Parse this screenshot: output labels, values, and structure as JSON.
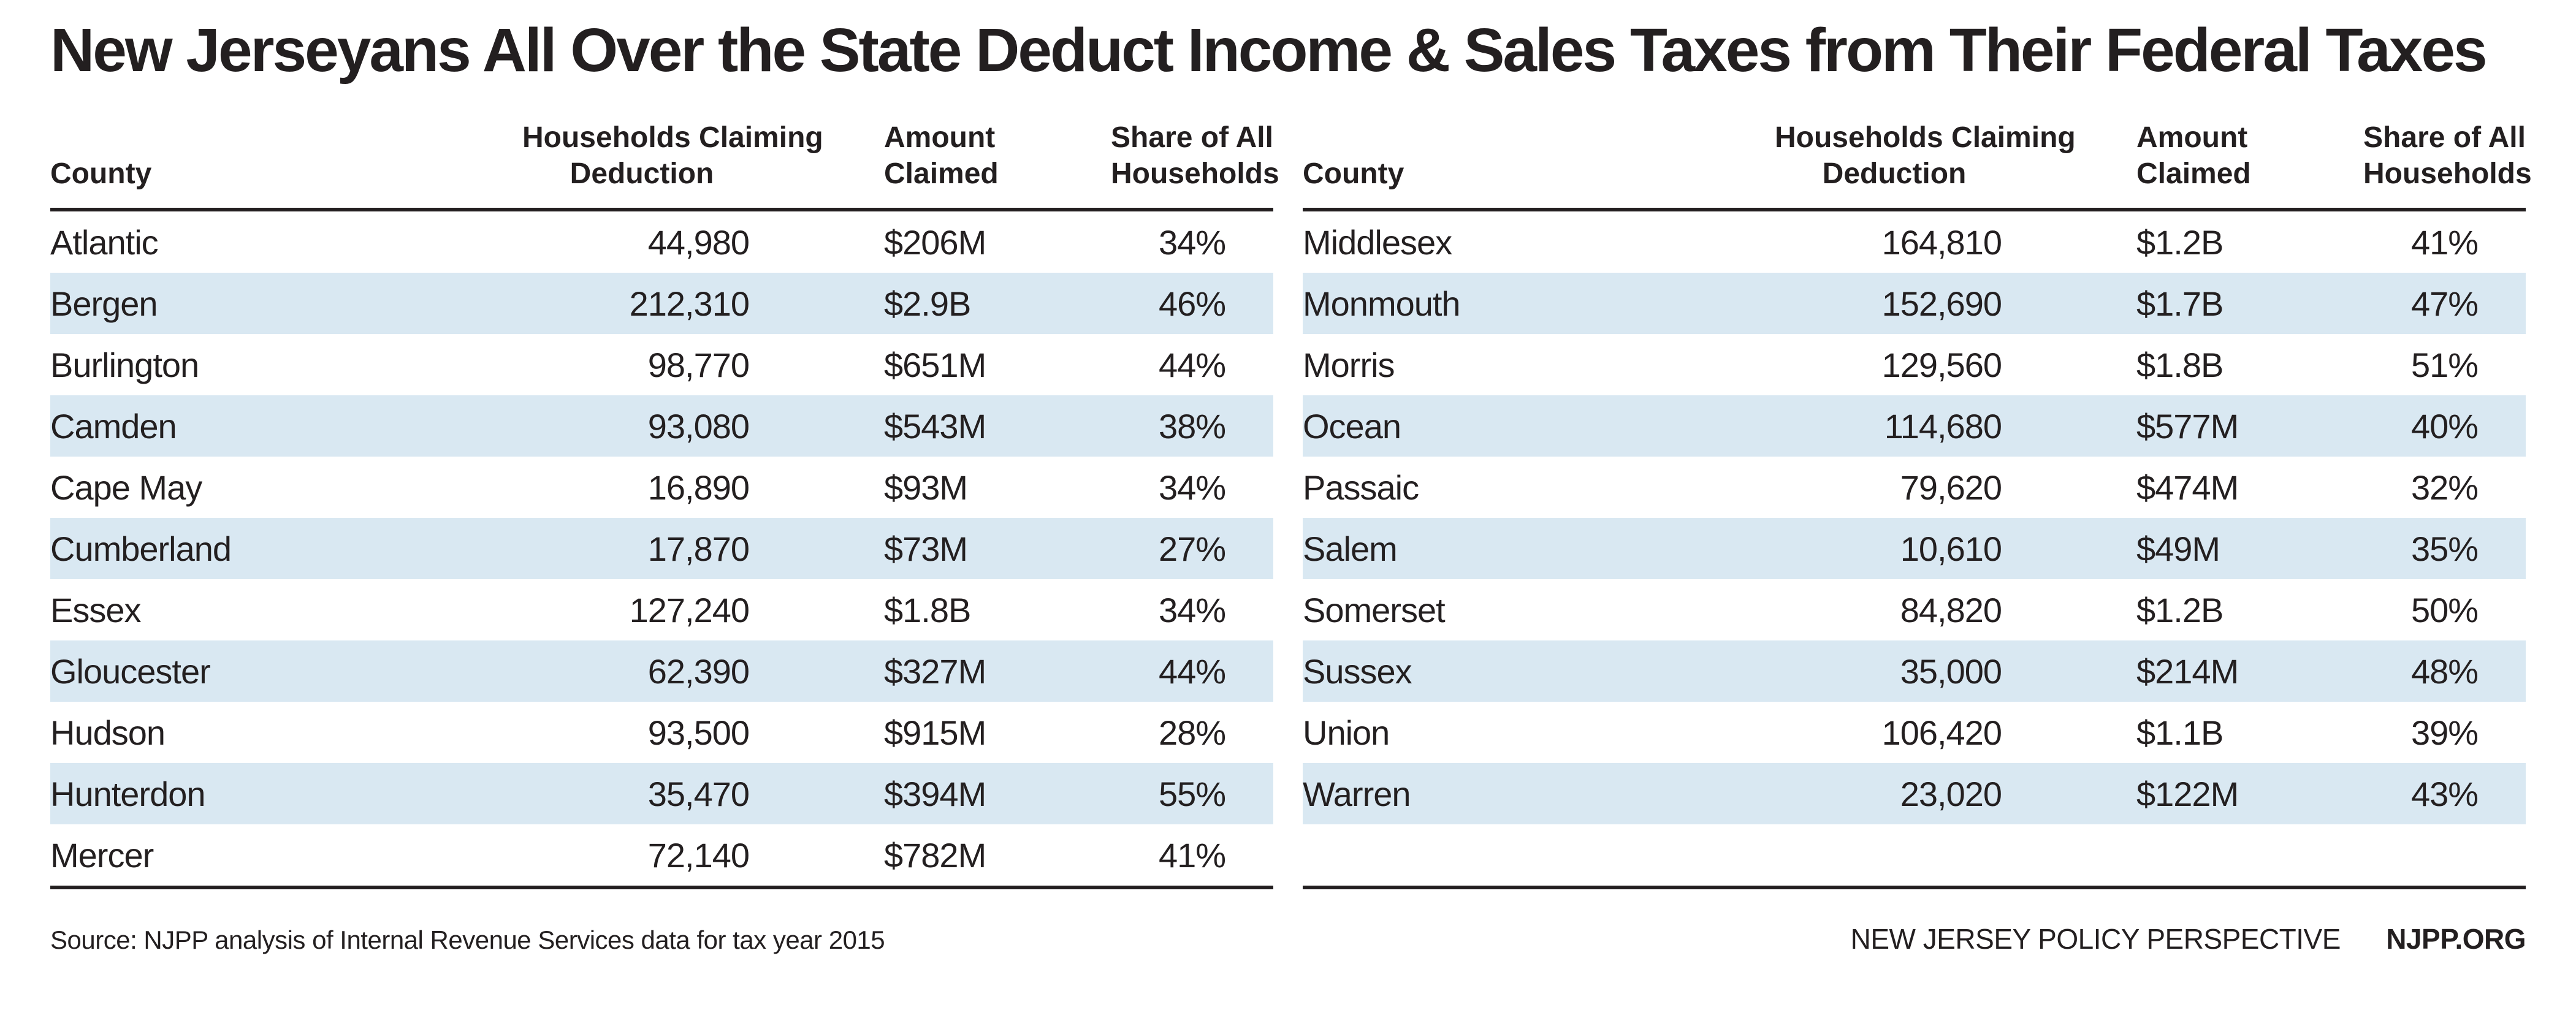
{
  "title": "New Jerseyans All Over the State Deduct Income & Sales Taxes from Their Federal Taxes",
  "columns": {
    "county": "County",
    "households": "Households Claiming\nDeduction",
    "amount": "Amount\nClaimed",
    "share": "Share of All\nHouseholds"
  },
  "tables": [
    {
      "rows": [
        {
          "county": "Atlantic",
          "households": "44,980",
          "amount": "$206M",
          "share": "34%"
        },
        {
          "county": "Bergen",
          "households": "212,310",
          "amount": "$2.9B",
          "share": "46%"
        },
        {
          "county": "Burlington",
          "households": "98,770",
          "amount": "$651M",
          "share": "44%"
        },
        {
          "county": "Camden",
          "households": "93,080",
          "amount": "$543M",
          "share": "38%"
        },
        {
          "county": "Cape May",
          "households": "16,890",
          "amount": "$93M",
          "share": "34%"
        },
        {
          "county": "Cumberland",
          "households": "17,870",
          "amount": "$73M",
          "share": "27%"
        },
        {
          "county": "Essex",
          "households": "127,240",
          "amount": "$1.8B",
          "share": "34%"
        },
        {
          "county": "Gloucester",
          "households": "62,390",
          "amount": "$327M",
          "share": "44%"
        },
        {
          "county": "Hudson",
          "households": "93,500",
          "amount": "$915M",
          "share": "28%"
        },
        {
          "county": "Hunterdon",
          "households": "35,470",
          "amount": "$394M",
          "share": "55%"
        },
        {
          "county": "Mercer",
          "households": "72,140",
          "amount": "$782M",
          "share": "41%"
        }
      ]
    },
    {
      "rows": [
        {
          "county": "Middlesex",
          "households": "164,810",
          "amount": "$1.2B",
          "share": "41%"
        },
        {
          "county": "Monmouth",
          "households": "152,690",
          "amount": "$1.7B",
          "share": "47%"
        },
        {
          "county": "Morris",
          "households": "129,560",
          "amount": "$1.8B",
          "share": "51%"
        },
        {
          "county": "Ocean",
          "households": "114,680",
          "amount": "$577M",
          "share": "40%"
        },
        {
          "county": "Passaic",
          "households": "79,620",
          "amount": "$474M",
          "share": "32%"
        },
        {
          "county": "Salem",
          "households": "10,610",
          "amount": "$49M",
          "share": "35%"
        },
        {
          "county": "Somerset",
          "households": "84,820",
          "amount": "$1.2B",
          "share": "50%"
        },
        {
          "county": "Sussex",
          "households": "35,000",
          "amount": "$214M",
          "share": "48%"
        },
        {
          "county": "Union",
          "households": "106,420",
          "amount": "$1.1B",
          "share": "39%"
        },
        {
          "county": "Warren",
          "households": "23,020",
          "amount": "$122M",
          "share": "43%"
        }
      ]
    }
  ],
  "footer": {
    "source": "Source: NJPP analysis of Internal Revenue Services data for tax year 2015",
    "org_name": "NEW JERSEY POLICY PERSPECTIVE",
    "org_site": "NJPP.ORG"
  },
  "colors": {
    "text": "#231f20",
    "rule": "#231f20",
    "row_shade": "#d9e8f2",
    "background": "#ffffff"
  },
  "chart_data": {
    "type": "table",
    "title": "New Jerseyans All Over the State Deduct Income & Sales Taxes from Their Federal Taxes",
    "columns": [
      "County",
      "Households Claiming Deduction",
      "Amount Claimed",
      "Share of All Households"
    ],
    "rows": [
      [
        "Atlantic",
        "44,980",
        "$206M",
        "34%"
      ],
      [
        "Bergen",
        "212,310",
        "$2.9B",
        "46%"
      ],
      [
        "Burlington",
        "98,770",
        "$651M",
        "44%"
      ],
      [
        "Camden",
        "93,080",
        "$543M",
        "38%"
      ],
      [
        "Cape May",
        "16,890",
        "$93M",
        "34%"
      ],
      [
        "Cumberland",
        "17,870",
        "$73M",
        "27%"
      ],
      [
        "Essex",
        "127,240",
        "$1.8B",
        "34%"
      ],
      [
        "Gloucester",
        "62,390",
        "$327M",
        "44%"
      ],
      [
        "Hudson",
        "93,500",
        "$915M",
        "28%"
      ],
      [
        "Hunterdon",
        "35,470",
        "$394M",
        "55%"
      ],
      [
        "Mercer",
        "72,140",
        "$782M",
        "41%"
      ],
      [
        "Middlesex",
        "164,810",
        "$1.2B",
        "41%"
      ],
      [
        "Monmouth",
        "152,690",
        "$1.7B",
        "47%"
      ],
      [
        "Morris",
        "129,560",
        "$1.8B",
        "51%"
      ],
      [
        "Ocean",
        "114,680",
        "$577M",
        "40%"
      ],
      [
        "Passaic",
        "79,620",
        "$474M",
        "32%"
      ],
      [
        "Salem",
        "10,610",
        "$49M",
        "35%"
      ],
      [
        "Somerset",
        "84,820",
        "$1.2B",
        "50%"
      ],
      [
        "Sussex",
        "35,000",
        "$214M",
        "48%"
      ],
      [
        "Union",
        "106,420",
        "$1.1B",
        "39%"
      ],
      [
        "Warren",
        "23,020",
        "$122M",
        "43%"
      ]
    ],
    "layout": "two side-by-side table halves; alternating light-blue row banding; heavy black rule under header and under last row",
    "source_note": "Source: NJPP analysis of Internal Revenue Services data for tax year 2015"
  }
}
